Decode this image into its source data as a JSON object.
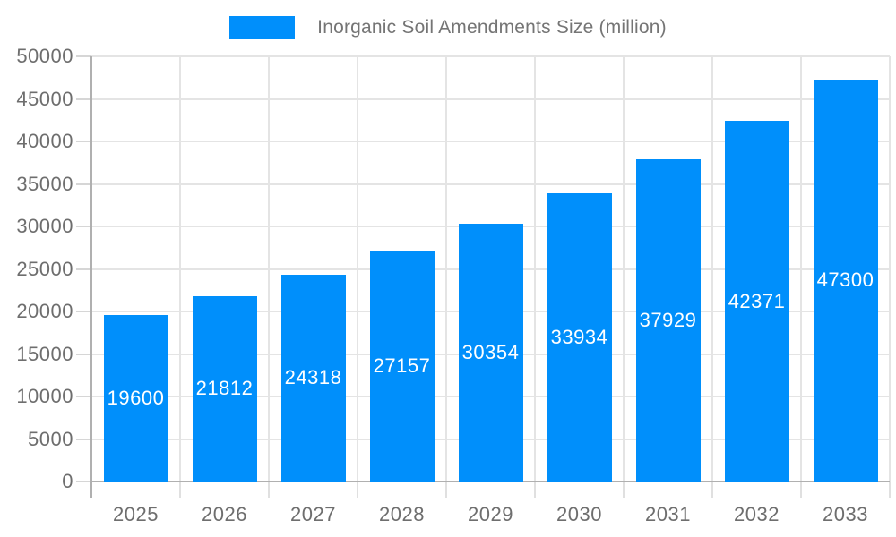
{
  "legend": {
    "label": "Inorganic Soil Amendments Size (million)"
  },
  "chart_data": {
    "type": "bar",
    "title": "Inorganic Soil Amendments Size (million)",
    "series_name": "Inorganic Soil Amendments Size (million)",
    "categories": [
      "2025",
      "2026",
      "2027",
      "2028",
      "2029",
      "2030",
      "2031",
      "2032",
      "2033"
    ],
    "values": [
      19600,
      21812,
      24318,
      27157,
      30354,
      33934,
      37929,
      42371,
      47300
    ],
    "value_labels_shown": true,
    "xlabel": "",
    "ylabel": "",
    "ylim": [
      0,
      50000
    ],
    "y_tick_step": 5000,
    "y_ticks": [
      0,
      5000,
      10000,
      15000,
      20000,
      25000,
      30000,
      35000,
      40000,
      45000,
      50000
    ],
    "grid": true,
    "legend_position": "top",
    "colors": {
      "bar": "#008FFB",
      "grid": "#e4e4e4",
      "axis_line": "#b0b0b0",
      "y_tick": "#d6d6d6",
      "x_tick": "#e0e0e0",
      "axis_label": "#6e6e6e",
      "legend_text": "#757575",
      "value_label": "#ffffff",
      "background": "#ffffff"
    }
  }
}
